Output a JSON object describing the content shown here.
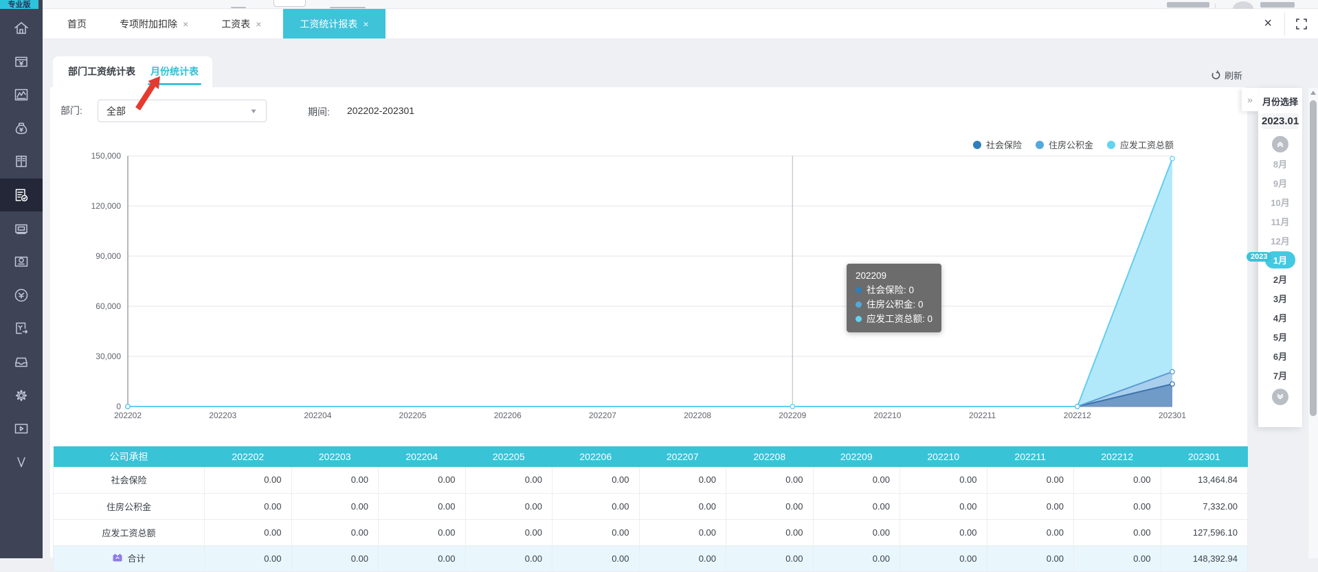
{
  "badge": "专业版",
  "tabs": [
    {
      "label": "首页",
      "closable": false,
      "active": false
    },
    {
      "label": "专项附加扣除",
      "closable": true,
      "active": false
    },
    {
      "label": "工资表",
      "closable": true,
      "active": false
    },
    {
      "label": "工资统计报表",
      "closable": true,
      "active": true
    }
  ],
  "window_controls": {
    "close": "×"
  },
  "subtabs": [
    {
      "label": "部门工资统计表",
      "active": false
    },
    {
      "label": "月份统计表",
      "active": true
    }
  ],
  "toolbar": {
    "refresh_label": "刷新"
  },
  "filters": {
    "department_label": "部门:",
    "department_value": "全部",
    "period_label": "期间:",
    "period_value": "202202-202301"
  },
  "sidebar": {
    "items": [
      {
        "icon": "home-icon",
        "active": false
      },
      {
        "icon": "invoice-yen-icon",
        "active": false
      },
      {
        "icon": "line-chart-icon",
        "active": false
      },
      {
        "icon": "money-bag-icon",
        "active": false
      },
      {
        "icon": "ledger-icon",
        "active": false
      },
      {
        "icon": "report-check-icon",
        "active": true
      },
      {
        "icon": "cash-register-icon",
        "active": false
      },
      {
        "icon": "coin-frame-icon",
        "active": false
      },
      {
        "icon": "tax-icon",
        "active": false
      },
      {
        "icon": "voucher-transfer-icon",
        "active": false
      },
      {
        "icon": "inbox-icon",
        "active": false
      },
      {
        "icon": "gear-icon",
        "active": false
      },
      {
        "icon": "video-icon",
        "active": false
      },
      {
        "icon": "v-brand-icon",
        "active": false
      }
    ]
  },
  "chart_data": {
    "type": "area",
    "stacked": true,
    "categories": [
      "202202",
      "202203",
      "202204",
      "202205",
      "202206",
      "202207",
      "202208",
      "202209",
      "202210",
      "202211",
      "202212",
      "202301"
    ],
    "series": [
      {
        "name": "社会保险",
        "values": [
          0,
          0,
          0,
          0,
          0,
          0,
          0,
          0,
          0,
          0,
          0,
          13464.84
        ],
        "line": "#3c74ad",
        "fill": "#6d97c6",
        "dot": "#2e7fbe"
      },
      {
        "name": "住房公积金",
        "values": [
          0,
          0,
          0,
          0,
          0,
          0,
          0,
          0,
          0,
          0,
          0,
          7332.0
        ],
        "line": "#5b9bd5",
        "fill": "#a9cdec",
        "dot": "#54a8dc"
      },
      {
        "name": "应发工资总额",
        "values": [
          0,
          0,
          0,
          0,
          0,
          0,
          0,
          0,
          0,
          0,
          0,
          127596.1
        ],
        "line": "#62cdf0",
        "fill": "#aee8fa",
        "dot": "#62d4f2"
      }
    ],
    "ylim": [
      0,
      150000
    ],
    "ytick_step": 30000,
    "grid": true,
    "legend_position": "top-right",
    "tooltip": {
      "category": "202209",
      "index": 7,
      "items": [
        {
          "name": "社会保险",
          "value": "0"
        },
        {
          "name": "住房公积金",
          "value": "0"
        },
        {
          "name": "应发工资总额",
          "value": "0"
        }
      ]
    }
  },
  "table": {
    "first_col": "公司承担",
    "columns": [
      "202202",
      "202203",
      "202204",
      "202205",
      "202206",
      "202207",
      "202208",
      "202209",
      "202210",
      "202211",
      "202212",
      "202301"
    ],
    "rows": [
      {
        "label": "社会保险",
        "total": false,
        "values": [
          "0.00",
          "0.00",
          "0.00",
          "0.00",
          "0.00",
          "0.00",
          "0.00",
          "0.00",
          "0.00",
          "0.00",
          "0.00",
          "13,464.84"
        ]
      },
      {
        "label": "住房公积金",
        "total": false,
        "values": [
          "0.00",
          "0.00",
          "0.00",
          "0.00",
          "0.00",
          "0.00",
          "0.00",
          "0.00",
          "0.00",
          "0.00",
          "0.00",
          "7,332.00"
        ]
      },
      {
        "label": "应发工资总额",
        "total": false,
        "values": [
          "0.00",
          "0.00",
          "0.00",
          "0.00",
          "0.00",
          "0.00",
          "0.00",
          "0.00",
          "0.00",
          "0.00",
          "0.00",
          "127,596.10"
        ]
      },
      {
        "label": "合计",
        "total": true,
        "values": [
          "0.00",
          "0.00",
          "0.00",
          "0.00",
          "0.00",
          "0.00",
          "0.00",
          "0.00",
          "0.00",
          "0.00",
          "0.00",
          "148,392.94"
        ]
      }
    ]
  },
  "month_panel": {
    "collapse_icon": "»",
    "title": "月份选择",
    "current": "2023.01",
    "year_badge": "2023",
    "months": [
      {
        "label": "8月",
        "muted": true,
        "selected": false
      },
      {
        "label": "9月",
        "muted": true,
        "selected": false
      },
      {
        "label": "10月",
        "muted": true,
        "selected": false
      },
      {
        "label": "11月",
        "muted": true,
        "selected": false
      },
      {
        "label": "12月",
        "muted": true,
        "selected": false
      },
      {
        "label": "1月",
        "muted": false,
        "selected": true
      },
      {
        "label": "2月",
        "muted": false,
        "selected": false
      },
      {
        "label": "3月",
        "muted": false,
        "selected": false
      },
      {
        "label": "4月",
        "muted": false,
        "selected": false
      },
      {
        "label": "5月",
        "muted": false,
        "selected": false
      },
      {
        "label": "6月",
        "muted": false,
        "selected": false
      },
      {
        "label": "7月",
        "muted": false,
        "selected": false
      }
    ]
  },
  "colors": {
    "accent": "#3bc3d8",
    "table_header": "#38c3d7",
    "sidebar_bg": "#3e4356",
    "sidebar_active_bg": "#232737",
    "total_row_bg": "#e9f6fc",
    "total_icon": "#8f7ae8",
    "annotation_arrow": "#e53a30"
  }
}
